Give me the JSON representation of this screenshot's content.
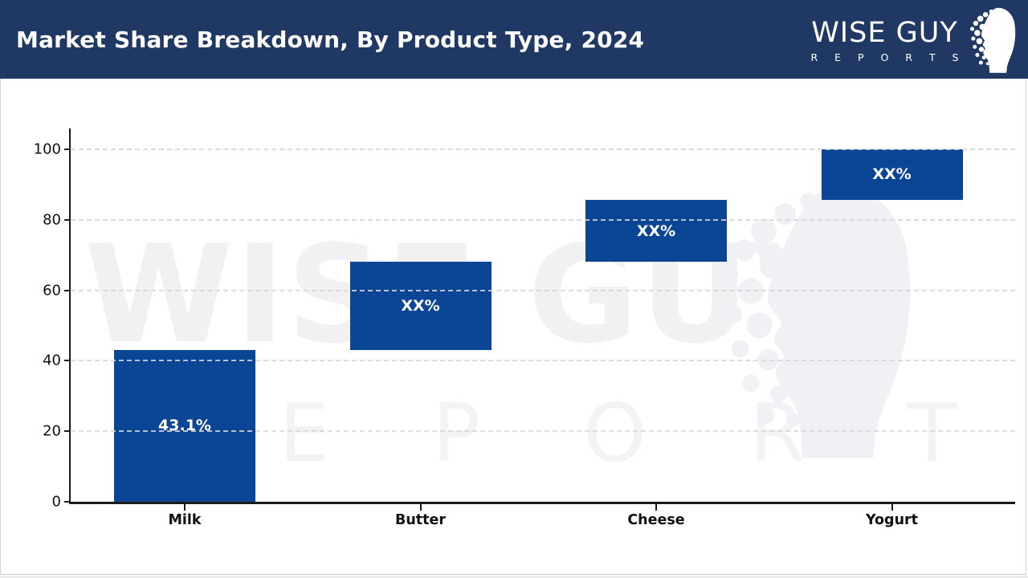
{
  "header": {
    "title": "Market Share Breakdown, By Product Type, 2024",
    "bg_color": "#1f3864",
    "logo": {
      "line1": "WISE GUY",
      "line2": "R E P O R T S"
    }
  },
  "watermark": {
    "line1": "WISE GUY",
    "line2": "R E P O R T S"
  },
  "chart_data": {
    "type": "bar",
    "variant": "waterfall",
    "title": "Market Share Breakdown, By Product Type, 2024",
    "categories": [
      "Milk",
      "Butter",
      "Cheese",
      "Yogurt"
    ],
    "segments": [
      {
        "category": "Milk",
        "start": 0,
        "end": 43.1,
        "delta": 43.1,
        "label": "43.1%"
      },
      {
        "category": "Butter",
        "start": 43.1,
        "end": 68.0,
        "delta": 24.9,
        "label": "XX%"
      },
      {
        "category": "Cheese",
        "start": 68.0,
        "end": 85.7,
        "delta": 17.7,
        "label": "XX%"
      },
      {
        "category": "Yogurt",
        "start": 85.7,
        "end": 100.0,
        "delta": 14.3,
        "label": "XX%"
      }
    ],
    "bar_color": "#0a4596",
    "label_color": "#ffffff",
    "ylim": [
      0,
      100
    ],
    "yticks": [
      0,
      20,
      40,
      60,
      80,
      100
    ],
    "grid": "horizontal dashed",
    "legend": "none"
  }
}
